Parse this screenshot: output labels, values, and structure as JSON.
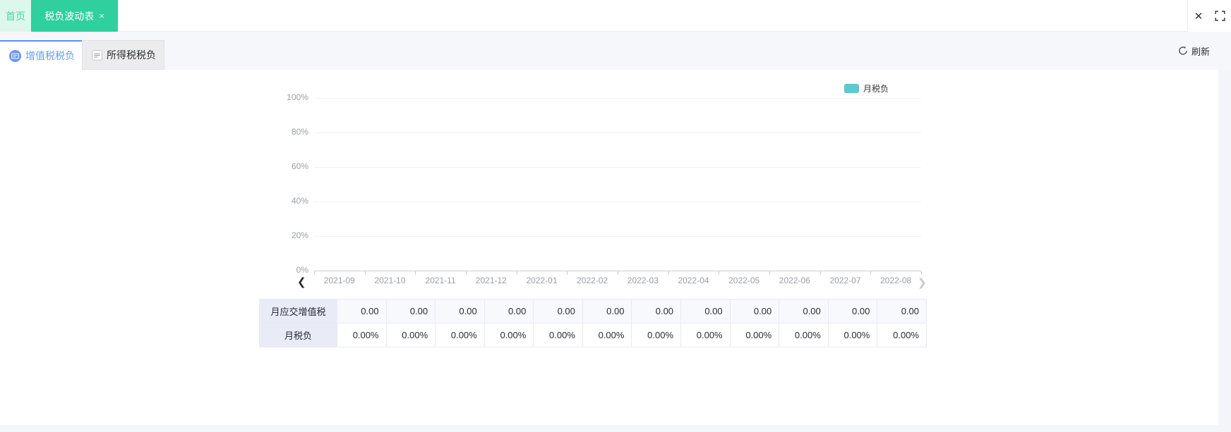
{
  "topbar": {
    "home_label": "首页",
    "active_doc_tab": "税负波动表",
    "active_doc_tab_close": "×",
    "window_close_glyph": "✕"
  },
  "toolbar": {
    "tabs": [
      {
        "label": "增值税税负",
        "active": true
      },
      {
        "label": "所得税税负",
        "active": false
      }
    ],
    "refresh_label": "刷新"
  },
  "icons": {
    "vat_tab": "report-icon",
    "income_tab": "report-icon",
    "refresh": "refresh-icon",
    "window_close": "close-icon",
    "window_fullscreen": "fullscreen-icon",
    "prev": "chevron-left-icon",
    "next": "chevron-right-icon"
  },
  "chart_data": {
    "type": "bar",
    "title": "",
    "legend_position": "top-right",
    "categories": [
      "2021-09",
      "2021-10",
      "2021-11",
      "2021-12",
      "2022-01",
      "2022-02",
      "2022-03",
      "2022-04",
      "2022-05",
      "2022-06",
      "2022-07",
      "2022-08"
    ],
    "series": [
      {
        "name": "月税负",
        "values": [
          0,
          0,
          0,
          0,
          0,
          0,
          0,
          0,
          0,
          0,
          0,
          0
        ],
        "color": "#5bc9ce"
      }
    ],
    "xlabel": "",
    "ylabel": "",
    "ylim": [
      0,
      100
    ],
    "yticks": [
      "100%",
      "80%",
      "60%",
      "40%",
      "20%",
      "0%"
    ],
    "grid": true,
    "pagination": {
      "prev": "❮",
      "next": "❯"
    }
  },
  "table": {
    "rows": [
      {
        "label": "月应交增值税",
        "values": [
          "0.00",
          "0.00",
          "0.00",
          "0.00",
          "0.00",
          "0.00",
          "0.00",
          "0.00",
          "0.00",
          "0.00",
          "0.00",
          "0.00"
        ]
      },
      {
        "label": "月税负",
        "values": [
          "0.00%",
          "0.00%",
          "0.00%",
          "0.00%",
          "0.00%",
          "0.00%",
          "0.00%",
          "0.00%",
          "0.00%",
          "0.00%",
          "0.00%",
          "0.00%"
        ]
      }
    ]
  },
  "colors": {
    "brand_green": "#30cf9e",
    "brand_green_light": "#dcf7ec",
    "accent_blue": "#5b8ff9",
    "series_teal": "#5bc9ce",
    "page_bg": "#f3f5f9"
  }
}
